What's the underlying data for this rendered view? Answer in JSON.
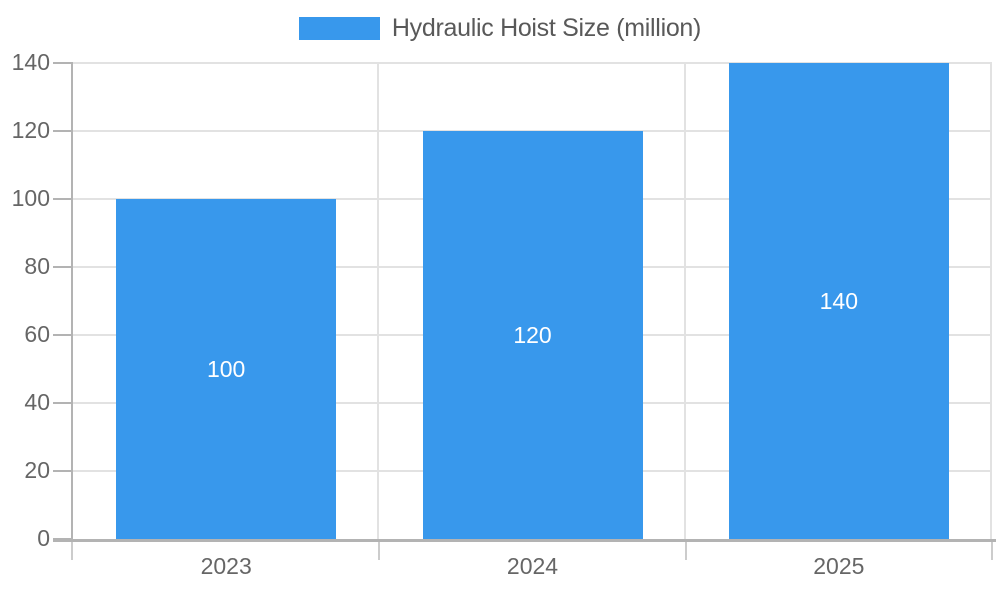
{
  "chart_data": {
    "type": "bar",
    "title": "Hydraulic Hoist Size (million)",
    "categories": [
      "2023",
      "2024",
      "2025"
    ],
    "series": [
      {
        "name": "Hydraulic Hoist Size (million)",
        "values": [
          100,
          120,
          140
        ]
      }
    ],
    "bar_value_labels": [
      "100",
      "120",
      "140"
    ],
    "xlabel": "",
    "ylabel": "",
    "ylim": [
      0,
      140
    ],
    "ytick_step": 20,
    "ytick_labels": [
      "0",
      "20",
      "40",
      "60",
      "80",
      "100",
      "120",
      "140"
    ],
    "grid": true,
    "legend_position": "top-center",
    "colors": {
      "bar": "#3898ec",
      "grid": "#e2e2e2",
      "axis": "#b3b3b3",
      "outer_tick": "#cccccc",
      "tick_text": "#666666",
      "legend_text": "#595959",
      "bar_label_text": "#ffffff",
      "background": "#ffffff"
    }
  }
}
